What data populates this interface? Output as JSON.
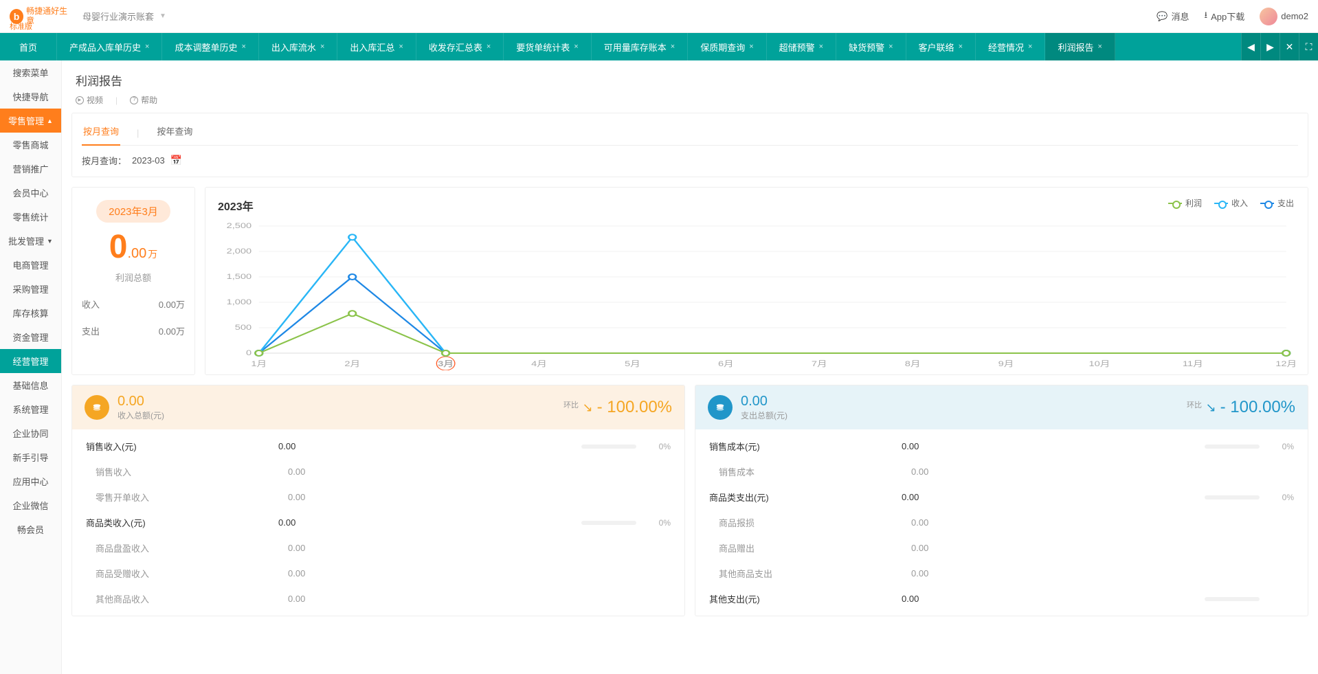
{
  "header": {
    "logo_text": "畅捷通好生意",
    "logo_sub": "标准版",
    "account": "母婴行业演示账套",
    "msg": "消息",
    "app": "App下载",
    "user": "demo2"
  },
  "tabs": {
    "home": "首页",
    "items": [
      "产成品入库单历史",
      "成本调整单历史",
      "出入库流水",
      "出入库汇总",
      "收发存汇总表",
      "要货单统计表",
      "可用量库存账本",
      "保质期查询",
      "超储预警",
      "缺货预警",
      "客户联络",
      "经营情况",
      "利润报告"
    ],
    "active_index": 12
  },
  "sidebar": {
    "items": [
      {
        "label": "搜索菜单"
      },
      {
        "label": "快捷导航"
      },
      {
        "label": "零售管理",
        "style": "orange",
        "caret": "▲"
      },
      {
        "label": "零售商城"
      },
      {
        "label": "营销推广"
      },
      {
        "label": "会员中心"
      },
      {
        "label": "零售统计"
      },
      {
        "label": "批发管理",
        "caret": "▼"
      },
      {
        "label": "电商管理"
      },
      {
        "label": "采购管理"
      },
      {
        "label": "库存核算"
      },
      {
        "label": "资金管理"
      },
      {
        "label": "经营管理",
        "style": "teal"
      },
      {
        "label": "基础信息"
      },
      {
        "label": "系统管理"
      },
      {
        "label": "企业协同"
      },
      {
        "label": "新手引导"
      },
      {
        "label": "应用中心"
      },
      {
        "label": "企业微信"
      },
      {
        "label": "畅会员"
      }
    ]
  },
  "page": {
    "title": "利润报告",
    "video": "视频",
    "help": "帮助",
    "query_tabs": [
      "按月查询",
      "按年查询"
    ],
    "query_active": 0,
    "month_label": "按月查询：",
    "month_value": "2023-03"
  },
  "summary": {
    "pill": "2023年3月",
    "big_int": "0",
    "big_dec": ".00",
    "big_unit": "万",
    "label": "利润总额",
    "rows": [
      {
        "k": "收入",
        "v": "0.00万"
      },
      {
        "k": "支出",
        "v": "0.00万"
      }
    ]
  },
  "chart": {
    "title": "2023年",
    "legend": [
      {
        "label": "利润",
        "color": "#8bc34a"
      },
      {
        "label": "收入",
        "color": "#29b6f6"
      },
      {
        "label": "支出",
        "color": "#1e88e5"
      }
    ],
    "y_ticks": [
      "2,500",
      "2,000",
      "1,500",
      "1,000",
      "500",
      "0"
    ],
    "y_values": [
      2500,
      2000,
      1500,
      1000,
      500,
      0
    ],
    "ylim": [
      0,
      2500
    ],
    "x_labels": [
      "1月",
      "2月",
      "3月",
      "4月",
      "5月",
      "6月",
      "7月",
      "8月",
      "9月",
      "10月",
      "11月",
      "12月"
    ],
    "highlight_month_index": 2,
    "series": {
      "profit": [
        0,
        780,
        0,
        0,
        0,
        0,
        0,
        0,
        0,
        0,
        0,
        0
      ],
      "income": [
        0,
        2280,
        0,
        0,
        0,
        0,
        0,
        0,
        0,
        0,
        0,
        0
      ],
      "expense": [
        0,
        1500,
        0,
        0,
        0,
        0,
        0,
        0,
        0,
        0,
        0,
        0
      ]
    },
    "colors": {
      "profit": "#8bc34a",
      "income": "#29b6f6",
      "expense": "#1e88e5"
    },
    "grid_color": "#f2f2f2",
    "axis_color": "#dddddd",
    "background": "#ffffff",
    "line_width": 2,
    "marker_radius": 4
  },
  "income": {
    "head_value": "0.00",
    "head_label": "收入总额(元)",
    "hb_label": "环比",
    "hb_value": "- 100.00%",
    "rows": [
      {
        "type": "group",
        "name": "销售收入(元)",
        "val": "0.00",
        "pct": "0%"
      },
      {
        "type": "sub",
        "name": "销售收入",
        "val": "0.00"
      },
      {
        "type": "sub",
        "name": "零售开单收入",
        "val": "0.00"
      },
      {
        "type": "group",
        "name": "商品类收入(元)",
        "val": "0.00",
        "pct": "0%"
      },
      {
        "type": "sub",
        "name": "商品盘盈收入",
        "val": "0.00"
      },
      {
        "type": "sub",
        "name": "商品受赠收入",
        "val": "0.00"
      },
      {
        "type": "sub",
        "name": "其他商品收入",
        "val": "0.00"
      }
    ]
  },
  "expense": {
    "head_value": "0.00",
    "head_label": "支出总额(元)",
    "hb_label": "环比",
    "hb_value": "- 100.00%",
    "rows": [
      {
        "type": "group",
        "name": "销售成本(元)",
        "val": "0.00",
        "pct": "0%"
      },
      {
        "type": "sub",
        "name": "销售成本",
        "val": "0.00"
      },
      {
        "type": "group",
        "name": "商品类支出(元)",
        "val": "0.00",
        "pct": "0%"
      },
      {
        "type": "sub",
        "name": "商品报损",
        "val": "0.00"
      },
      {
        "type": "sub",
        "name": "商品赠出",
        "val": "0.00"
      },
      {
        "type": "sub",
        "name": "其他商品支出",
        "val": "0.00"
      },
      {
        "type": "group",
        "name": "其他支出(元)",
        "val": "0.00"
      }
    ]
  }
}
